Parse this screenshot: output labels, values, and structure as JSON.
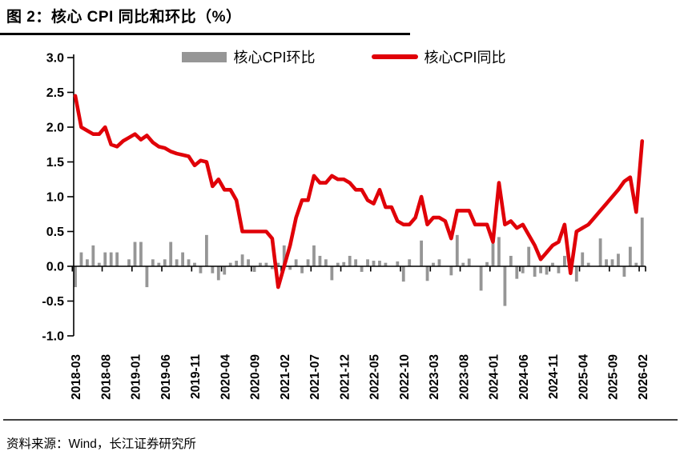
{
  "header": {
    "title": "图 2：核心 CPI 同比和环比（%）"
  },
  "footer": {
    "source": "资料来源：Wind，长江证券研究所"
  },
  "colors": {
    "bar": "#969696",
    "line": "#e00008",
    "axis": "#000000"
  },
  "chart_data": {
    "type": "combo",
    "title": "核心 CPI 同比和环比（%）",
    "xlabel": "",
    "ylabel": "",
    "ylim": [
      -1.0,
      3.0
    ],
    "y_tick_step": 0.5,
    "y_tick_labels": [
      "3.0",
      "2.5",
      "2.0",
      "1.5",
      "1.0",
      "0.5",
      "0.0",
      "-0.5",
      "-1.0"
    ],
    "x_tick_every": 5,
    "x_tick_labels": [
      "2018-03",
      "2018-08",
      "2019-01",
      "2019-06",
      "2019-11",
      "2020-04",
      "2020-09",
      "2021-02",
      "2021-07",
      "2021-12",
      "2022-05",
      "2022-10",
      "2023-03",
      "2023-08",
      "2024-01",
      "2024-06",
      "2024-11",
      "2025-04",
      "2025-09",
      "2026-02"
    ],
    "grid": false,
    "legend_position": "top",
    "categories": [
      "2018-03",
      "2018-04",
      "2018-05",
      "2018-06",
      "2018-07",
      "2018-08",
      "2018-09",
      "2018-10",
      "2018-11",
      "2018-12",
      "2019-01",
      "2019-02",
      "2019-03",
      "2019-04",
      "2019-05",
      "2019-06",
      "2019-07",
      "2019-08",
      "2019-09",
      "2019-10",
      "2019-11",
      "2019-12",
      "2020-01",
      "2020-02",
      "2020-03",
      "2020-04",
      "2020-05",
      "2020-06",
      "2020-07",
      "2020-08",
      "2020-09",
      "2020-10",
      "2020-11",
      "2020-12",
      "2021-01",
      "2021-02",
      "2021-03",
      "2021-04",
      "2021-05",
      "2021-06",
      "2021-07",
      "2021-08",
      "2021-09",
      "2021-10",
      "2021-11",
      "2021-12",
      "2022-01",
      "2022-02",
      "2022-03",
      "2022-04",
      "2022-05",
      "2022-06",
      "2022-07",
      "2022-08",
      "2022-09",
      "2022-10",
      "2022-11",
      "2022-12",
      "2023-01",
      "2023-02",
      "2023-03",
      "2023-04",
      "2023-05",
      "2023-06",
      "2023-07",
      "2023-08",
      "2023-09",
      "2023-10",
      "2023-11",
      "2023-12",
      "2024-01",
      "2024-02",
      "2024-03",
      "2024-04",
      "2024-05",
      "2024-06",
      "2024-07",
      "2024-08",
      "2024-09",
      "2024-10",
      "2024-11",
      "2024-12",
      "2025-01",
      "2025-02",
      "2025-03",
      "2025-04",
      "2025-05",
      "2025-06",
      "2025-07",
      "2025-08",
      "2025-09",
      "2025-10",
      "2025-11",
      "2025-12",
      "2026-01",
      "2026-02"
    ],
    "series": [
      {
        "name": "核心CPI环比",
        "type": "bar",
        "color": "#969696",
        "values": [
          -0.3,
          0.2,
          0.1,
          0.3,
          0.05,
          0.2,
          0.2,
          0.2,
          0.0,
          0.1,
          0.35,
          0.35,
          -0.3,
          0.1,
          0.05,
          0.1,
          0.35,
          0.1,
          0.2,
          0.1,
          0.05,
          -0.1,
          0.45,
          -0.1,
          -0.2,
          -0.12,
          0.05,
          0.08,
          0.17,
          0.1,
          -0.08,
          0.05,
          0.05,
          -0.04,
          0.05,
          0.3,
          -0.05,
          0.1,
          -0.1,
          0.1,
          0.3,
          0.15,
          0.1,
          -0.2,
          0.05,
          0.06,
          0.15,
          0.1,
          -0.08,
          0.1,
          0.08,
          0.08,
          0.05,
          0.0,
          0.07,
          -0.22,
          0.1,
          0.0,
          0.37,
          -0.21,
          0.05,
          0.1,
          0.0,
          -0.13,
          0.45,
          0.05,
          0.11,
          0.0,
          -0.35,
          0.06,
          0.33,
          0.42,
          -0.57,
          0.15,
          -0.18,
          -0.1,
          0.28,
          -0.15,
          -0.1,
          -0.12,
          0.05,
          -0.1,
          0.15,
          -0.04,
          -0.22,
          0.2,
          0.05,
          0.0,
          0.4,
          0.1,
          0.1,
          0.18,
          -0.15,
          0.28,
          0.05,
          0.7
        ]
      },
      {
        "name": "核心CPI同比",
        "type": "line",
        "color": "#e00008",
        "values": [
          2.45,
          2.0,
          1.95,
          1.9,
          1.9,
          2.0,
          1.75,
          1.72,
          1.8,
          1.85,
          1.9,
          1.82,
          1.88,
          1.78,
          1.72,
          1.7,
          1.65,
          1.62,
          1.6,
          1.58,
          1.45,
          1.52,
          1.5,
          1.15,
          1.25,
          1.1,
          1.1,
          0.95,
          0.5,
          0.5,
          0.5,
          0.5,
          0.5,
          0.4,
          -0.3,
          0.0,
          0.3,
          0.7,
          0.95,
          0.95,
          1.3,
          1.2,
          1.2,
          1.3,
          1.25,
          1.25,
          1.2,
          1.1,
          1.1,
          0.95,
          0.9,
          1.1,
          0.85,
          0.85,
          0.65,
          0.6,
          0.6,
          0.7,
          1.0,
          0.6,
          0.7,
          0.7,
          0.65,
          0.4,
          0.8,
          0.8,
          0.8,
          0.6,
          0.6,
          0.6,
          0.35,
          1.2,
          0.6,
          0.65,
          0.55,
          0.6,
          0.45,
          0.3,
          0.1,
          0.2,
          0.3,
          0.35,
          0.6,
          -0.1,
          0.5,
          0.55,
          0.6,
          0.7,
          0.8,
          0.9,
          1.0,
          1.1,
          1.22,
          1.28,
          0.78,
          1.8
        ]
      }
    ]
  }
}
